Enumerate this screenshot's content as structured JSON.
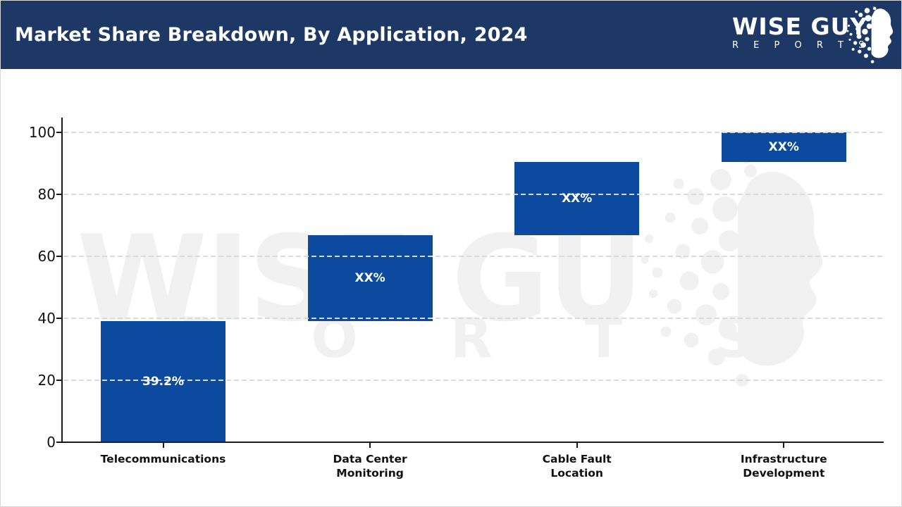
{
  "header": {
    "title": "Market Share Breakdown, By Application, 2024",
    "logo": {
      "line1": "WISE GUY",
      "line2": "R E P O R T S"
    }
  },
  "watermark": {
    "line1": "WISE GU",
    "line2": "P O R T S"
  },
  "chart_data": {
    "type": "bar",
    "subtype": "waterfall",
    "title": "Market Share Breakdown, By Application, 2024",
    "categories": [
      "Telecommunications",
      "Data Center Monitoring",
      "Cable Fault Location",
      "Infrastructure Development"
    ],
    "category_lines": [
      [
        "Telecommunications"
      ],
      [
        "Data Center",
        "Monitoring"
      ],
      [
        "Cable Fault",
        "Location"
      ],
      [
        "Infrastructure",
        "Development"
      ]
    ],
    "segments": [
      {
        "start": 0,
        "end": 39.2,
        "label": "39.2%"
      },
      {
        "start": 39.2,
        "end": 66.8,
        "label": "XX%"
      },
      {
        "start": 66.8,
        "end": 90.4,
        "label": "XX%"
      },
      {
        "start": 90.4,
        "end": 100,
        "label": "XX%"
      }
    ],
    "y_ticks": [
      0,
      20,
      40,
      60,
      80,
      100
    ],
    "ylim": [
      0,
      104.8
    ],
    "grid": "dashed-horizontal",
    "legend": "none",
    "bar_color": "#0b4a9e",
    "value_label_color": "#ffffff"
  },
  "colors": {
    "header_bg": "#1e3866",
    "bar": "#0b4a9e",
    "grid": "#dadada",
    "axis": "#1a1a1a",
    "watermark": "#f1f1f1"
  }
}
